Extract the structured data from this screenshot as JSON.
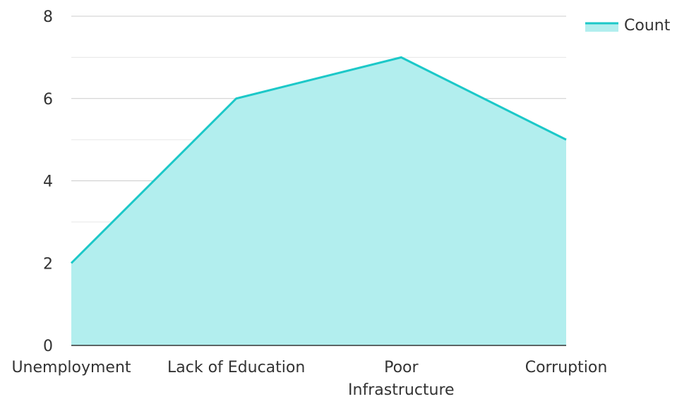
{
  "chart_data": {
    "type": "area",
    "categories": [
      "Unemployment",
      "Lack of Education",
      "Poor Infrastructure",
      "Corruption"
    ],
    "series": [
      {
        "name": "Count",
        "values": [
          2,
          6,
          7,
          5
        ],
        "line_color": "#1cc8c8",
        "fill_color": "#b2eeee"
      }
    ],
    "ylim": [
      0,
      8
    ],
    "y_ticks": [
      0,
      2,
      4,
      6,
      8
    ],
    "grid": true,
    "legend": {
      "placement": "top-right"
    },
    "title": "",
    "xlabel": "",
    "ylabel": "",
    "colors": {
      "grid_major": "#cccccc",
      "grid_minor": "#e6e6e6",
      "axis": "#333333",
      "text": "#333333"
    }
  }
}
